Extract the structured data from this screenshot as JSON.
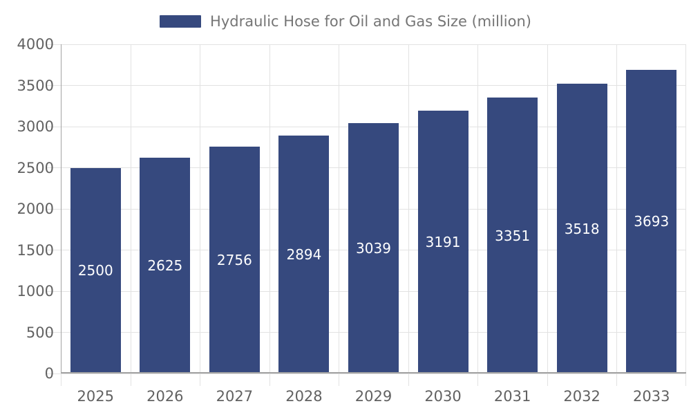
{
  "legend": {
    "label": "Hydraulic Hose for Oil and Gas Size (million)"
  },
  "chart_data": {
    "type": "bar",
    "title": "Hydraulic Hose for Oil and Gas Size (million)",
    "categories": [
      "2025",
      "2026",
      "2027",
      "2028",
      "2029",
      "2030",
      "2031",
      "2032",
      "2033"
    ],
    "values": [
      2500,
      2625,
      2756,
      2894,
      3039,
      3191,
      3351,
      3518,
      3693
    ],
    "xlabel": "",
    "ylabel": "",
    "ylim": [
      0,
      4000
    ],
    "ytick_step": 500,
    "grid": true,
    "legend_position": "top",
    "colors": {
      "bar": "#36497E",
      "bar_value_label": "#FFFFFF",
      "gridline": "#E2E2E2",
      "axis_line": "#A3A3A3",
      "axis_tick_label": "#616161",
      "legend_text": "#757575",
      "background": "#FFFFFF"
    }
  }
}
